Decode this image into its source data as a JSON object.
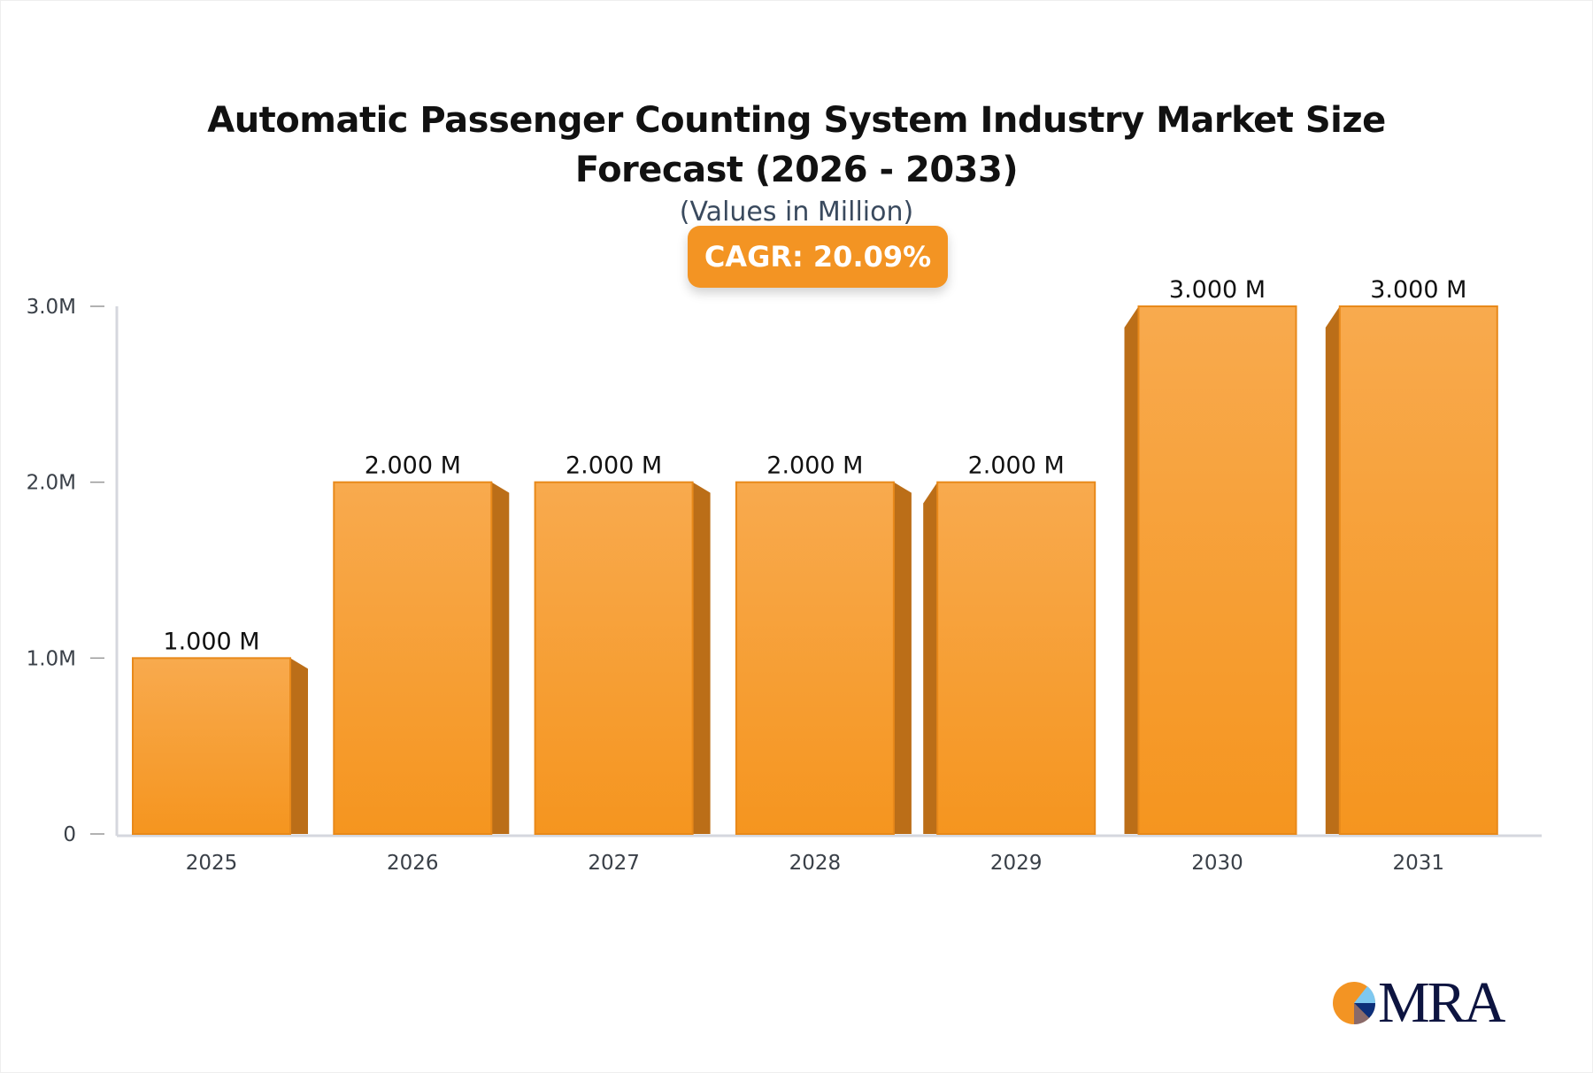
{
  "chart_data": {
    "type": "bar",
    "title": "Automatic Passenger Counting System Industry Market Size Forecast (2026 - 2033)",
    "subtitle": "(Values in Million)",
    "badge": "CAGR: 20.09%",
    "categories": [
      "2025",
      "2026",
      "2027",
      "2028",
      "2029",
      "2030",
      "2031"
    ],
    "values": [
      1.0,
      2.0,
      2.0,
      2.0,
      2.0,
      3.0,
      3.0
    ],
    "data_labels": [
      "1.000 M",
      "2.000 M",
      "2.000 M",
      "2.000 M",
      "2.000 M",
      "3.000 M",
      "3.000 M"
    ],
    "yticks": [
      {
        "v": 0,
        "label": "0"
      },
      {
        "v": 1,
        "label": "1.0M"
      },
      {
        "v": 2,
        "label": "2.0M"
      },
      {
        "v": 3,
        "label": "3.0M"
      }
    ],
    "ylim": [
      0,
      3
    ],
    "xlabel": "",
    "ylabel": "",
    "grid": false,
    "legend": "none",
    "colors": {
      "bar_top": "#f8aa4e",
      "bar_bottom": "#f5951f",
      "bar_side": "#bb6e18",
      "badge": "#f39423",
      "axis": "#d5d7de"
    }
  },
  "logo": {
    "text": "MRA"
  }
}
